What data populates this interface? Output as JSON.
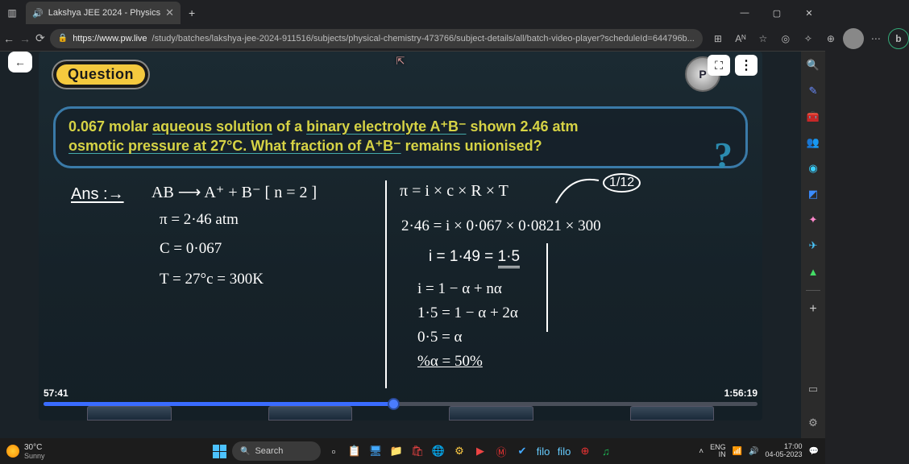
{
  "titlebar": {
    "tab_title": "Lakshya JEE 2024 - Physics",
    "new_tab": "+",
    "minimize": "—",
    "maximize": "▢",
    "close": "✕"
  },
  "addrbar": {
    "back": "←",
    "forward": "→",
    "refresh": "⟳",
    "lock": "🔒",
    "url_host": "https://www.pw.live",
    "url_path": "/study/batches/lakshya-jee-2024-911516/subjects/physical-chemistry-473766/subject-details/all/batch-video-player?scheduleId=644796b..."
  },
  "page": {
    "back_arrow": "←",
    "pip": "⇱",
    "fullscreen": "⛶",
    "menu": "⋮",
    "logo": "P",
    "question_tag": "Question",
    "question_l1a": "0.067 molar ",
    "question_l1b": "aqueous solution",
    "question_l1c": " of a ",
    "question_l1d": "binary electrolyte A⁺B⁻",
    "question_l1e": " shown 2.46 atm",
    "question_l2a": "osmotic pressure at 27°C. What fraction of A⁺B⁻",
    "question_l2b": " remains unionised?",
    "qmark": "?",
    "ans_label": "Ans :→",
    "eq1": "AB ⟶ A⁺ + B⁻  [ n = 2 ]",
    "eq2": "π = 2·46 atm",
    "eq3": "C = 0·067",
    "eq4": "T = 27°c = 300K",
    "eq5a": "π = i × c × R × T",
    "eq5b": "1/12",
    "eq6": "2·46 = i × 0·067 × 0·0821 × 300",
    "eq7a": "i = 1·49 = ",
    "eq7b": "1·5",
    "eq8": "i = 1 − α + nα",
    "eq9": "1·5 = 1 − α + 2α",
    "eq10": "0·5 = α",
    "eq11": "%α = 50%",
    "time_current": "57:41",
    "time_total": "1:56:19",
    "progress_pct": 49
  },
  "sidebar_colors": [
    "#4db8ff",
    "#6a8cff",
    "#ff6a3a",
    "#b088ff",
    "#3acfff",
    "#3a8cff",
    "#ff88cc",
    "#4ac8ff",
    "#44dd66"
  ],
  "taskbar": {
    "temp": "30°C",
    "cond": "Sunny",
    "search": "Search",
    "lang1": "ENG",
    "lang2": "IN",
    "time": "17:00",
    "date": "04-05-2023"
  },
  "task_icons": [
    {
      "c": "#fff",
      "t": "▫"
    },
    {
      "c": "#5a8",
      "t": "📋"
    },
    {
      "c": "#4af",
      "t": "🖥"
    },
    {
      "c": "#fc4",
      "t": "📁"
    },
    {
      "c": "#e44",
      "t": "🛍"
    },
    {
      "c": "#4af",
      "t": "🌐"
    },
    {
      "c": "#fc4",
      "t": "⚙"
    },
    {
      "c": "#e44",
      "t": "▶"
    },
    {
      "c": "#e33",
      "t": "Ⓜ"
    },
    {
      "c": "#4af",
      "t": "✔"
    },
    {
      "c": "#6cf",
      "t": "filo"
    },
    {
      "c": "#6cf",
      "t": "filo"
    },
    {
      "c": "#e33",
      "t": "⊕"
    },
    {
      "c": "#1db954",
      "t": "♫"
    }
  ]
}
